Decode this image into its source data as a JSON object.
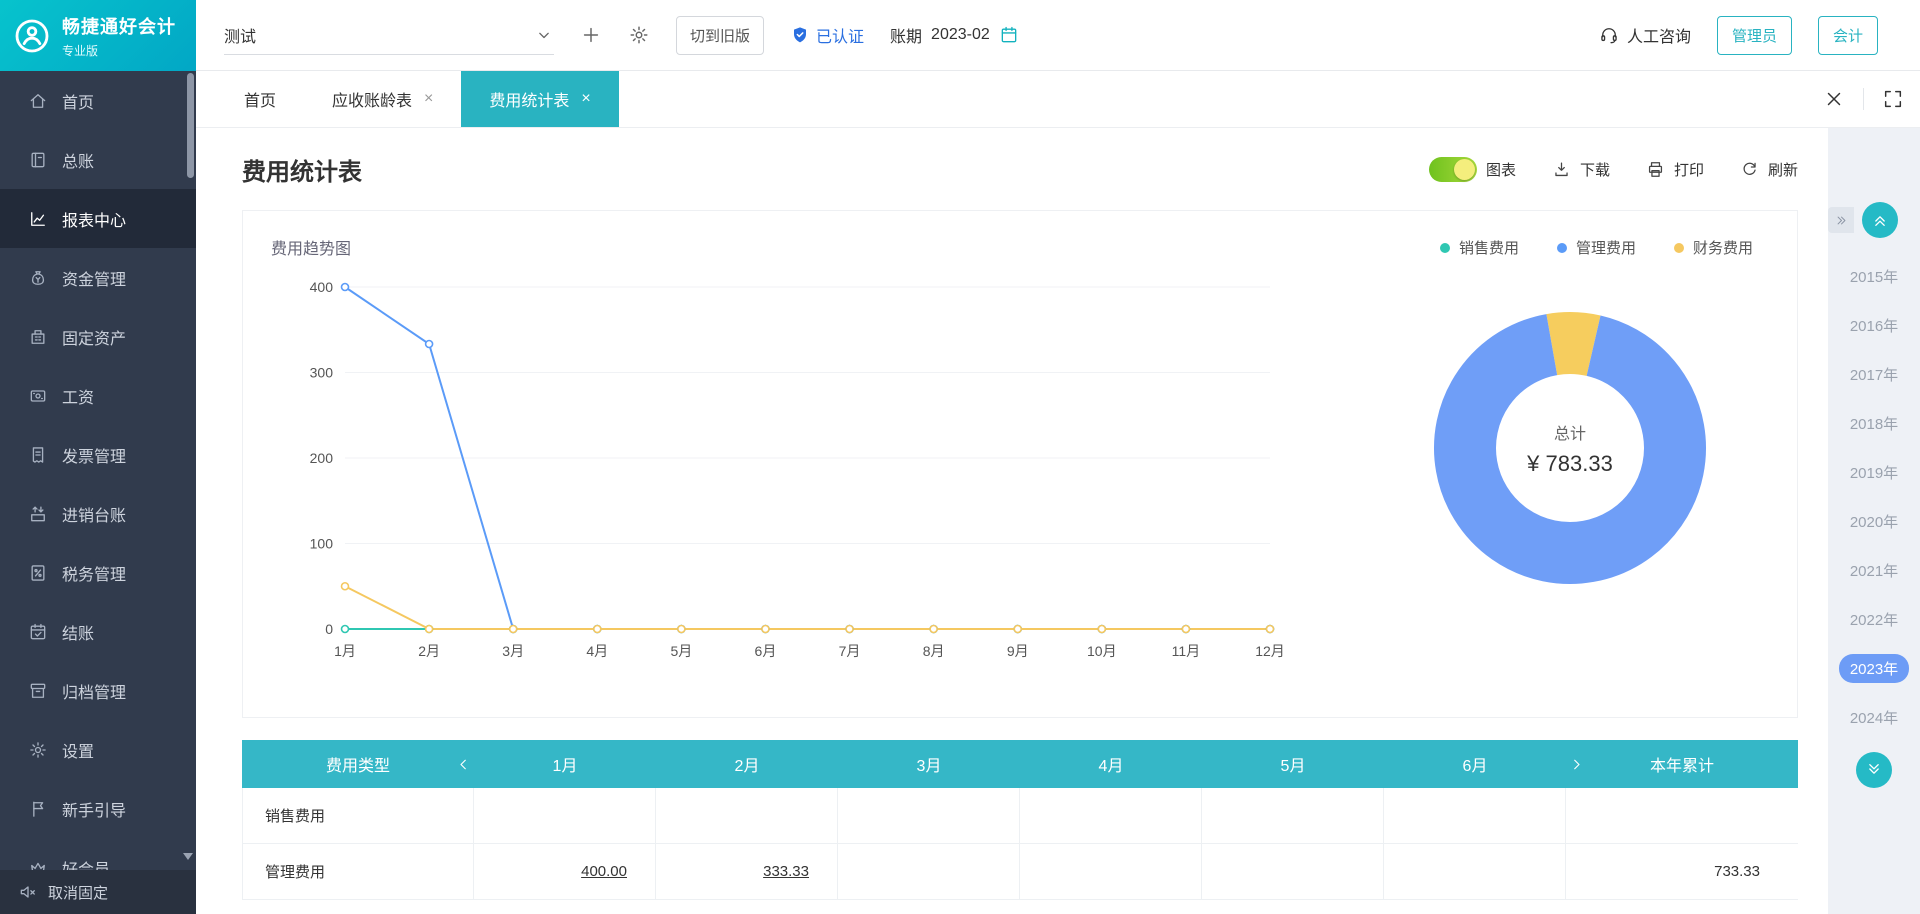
{
  "app": {
    "brand": "畅捷通好会计",
    "brand_sub": "专业版",
    "colors": {
      "accent_teal": "#29b3c1",
      "sidebar_bg": "#313b4d",
      "table_header": "#35b7c7",
      "year_selected": "#6d9cf6",
      "certified_blue": "#2a6fe0"
    }
  },
  "sidebar": {
    "items": [
      {
        "label": "首页",
        "icon": "home-icon"
      },
      {
        "label": "总账",
        "icon": "ledger-icon"
      },
      {
        "label": "报表中心",
        "icon": "report-icon",
        "active": true
      },
      {
        "label": "资金管理",
        "icon": "funds-icon"
      },
      {
        "label": "固定资产",
        "icon": "assets-icon"
      },
      {
        "label": "工资",
        "icon": "salary-icon"
      },
      {
        "label": "发票管理",
        "icon": "invoice-icon"
      },
      {
        "label": "进销台账",
        "icon": "inventory-icon"
      },
      {
        "label": "税务管理",
        "icon": "tax-icon"
      },
      {
        "label": "结账",
        "icon": "closing-icon"
      },
      {
        "label": "归档管理",
        "icon": "archive-icon"
      },
      {
        "label": "设置",
        "icon": "settings-icon"
      },
      {
        "label": "新手引导",
        "icon": "guide-icon"
      },
      {
        "label": "好会员",
        "icon": "member-icon",
        "partial": true
      }
    ],
    "unpin_label": "取消固定"
  },
  "header": {
    "account_name": "测试",
    "old_version_label": "切到旧版",
    "certified_label": "已认证",
    "period_label": "账期",
    "period_value": "2023-02",
    "support_label": "人工咨询",
    "role_admin": "管理员",
    "role_accountant": "会计"
  },
  "tabs": [
    {
      "label": "首页",
      "closable": false
    },
    {
      "label": "应收账龄表",
      "closable": true
    },
    {
      "label": "费用统计表",
      "closable": true,
      "active": true
    }
  ],
  "page": {
    "title": "费用统计表",
    "toolbar": {
      "chart_toggle_label": "图表",
      "download_label": "下载",
      "print_label": "打印",
      "refresh_label": "刷新"
    }
  },
  "chart_data": [
    {
      "type": "line",
      "title": "费用趋势图",
      "x": [
        "1月",
        "2月",
        "3月",
        "4月",
        "5月",
        "6月",
        "7月",
        "8月",
        "9月",
        "10月",
        "11月",
        "12月"
      ],
      "series": [
        {
          "name": "销售费用",
          "color": "#2fc7b2",
          "values": [
            0,
            0,
            0,
            0,
            0,
            0,
            0,
            0,
            0,
            0,
            0,
            0
          ]
        },
        {
          "name": "管理费用",
          "color": "#5b9bf8",
          "values": [
            400,
            333.33,
            0,
            0,
            0,
            0,
            0,
            0,
            0,
            0,
            0,
            0
          ]
        },
        {
          "name": "财务费用",
          "color": "#f5c860",
          "values": [
            50,
            0,
            0,
            0,
            0,
            0,
            0,
            0,
            0,
            0,
            0,
            0
          ]
        }
      ],
      "ylim": [
        0,
        400
      ],
      "yticks": [
        0,
        100,
        200,
        300,
        400
      ],
      "xlabel": "",
      "ylabel": "",
      "grid": true,
      "legend_position": "top-right"
    },
    {
      "type": "pie",
      "subtype": "donut",
      "center_label": "总计",
      "center_value": "¥ 783.33",
      "slices": [
        {
          "name": "财务费用",
          "value": 50,
          "color": "#f6cd5e"
        },
        {
          "name": "管理费用",
          "value": 733.33,
          "color": "#6f9ef7"
        },
        {
          "name": "销售费用",
          "value": 0,
          "color": "#2fc7b2"
        }
      ]
    }
  ],
  "table": {
    "col_type": "费用类型",
    "months": [
      "1月",
      "2月",
      "3月",
      "4月",
      "5月",
      "6月"
    ],
    "total_label": "本年累计",
    "rows": [
      {
        "label": "销售费用",
        "values": [
          "",
          "",
          "",
          "",
          "",
          ""
        ],
        "total": ""
      },
      {
        "label": "管理费用",
        "values": [
          "400.00",
          "333.33",
          "",
          "",
          "",
          ""
        ],
        "total": "733.33"
      }
    ]
  },
  "year_nav": {
    "years": [
      "2015年",
      "2016年",
      "2017年",
      "2018年",
      "2019年",
      "2020年",
      "2021年",
      "2022年",
      "2023年",
      "2024年"
    ],
    "selected": "2023年"
  }
}
